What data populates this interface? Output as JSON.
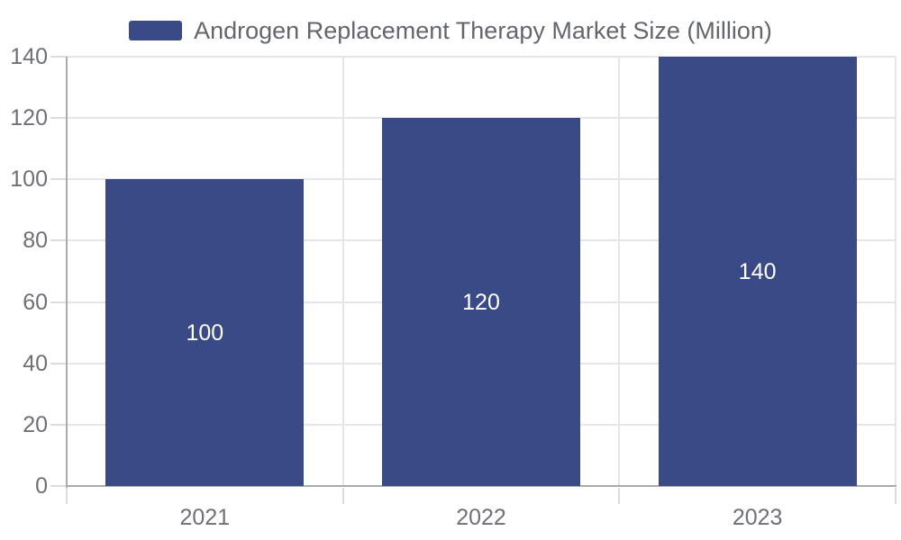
{
  "chart_data": {
    "type": "bar",
    "title": "Androgen Replacement Therapy Market Size (Million)",
    "categories": [
      "2021",
      "2022",
      "2023"
    ],
    "values": [
      100,
      120,
      140
    ],
    "series": [
      {
        "name": "Androgen Replacement Therapy Market Size (Million)",
        "values": [
          100,
          120,
          140
        ]
      }
    ],
    "bar_value_labels": [
      "100",
      "120",
      "140"
    ],
    "xlabel": "",
    "ylabel": "",
    "ylim": [
      0,
      140
    ],
    "yticks": [
      0,
      20,
      40,
      60,
      80,
      100,
      120,
      140
    ],
    "grid": true,
    "legend_position": "top-center",
    "colors": {
      "bar": "#3A4A87",
      "bar_label": "#FFFFFF",
      "gridline": "#E6E6EA",
      "tick": "#DCDCE0",
      "axis_line": "#ABABAF",
      "axis_label": "#6E7079",
      "legend_text": "#63666E",
      "background": "#FFFFFF"
    }
  }
}
